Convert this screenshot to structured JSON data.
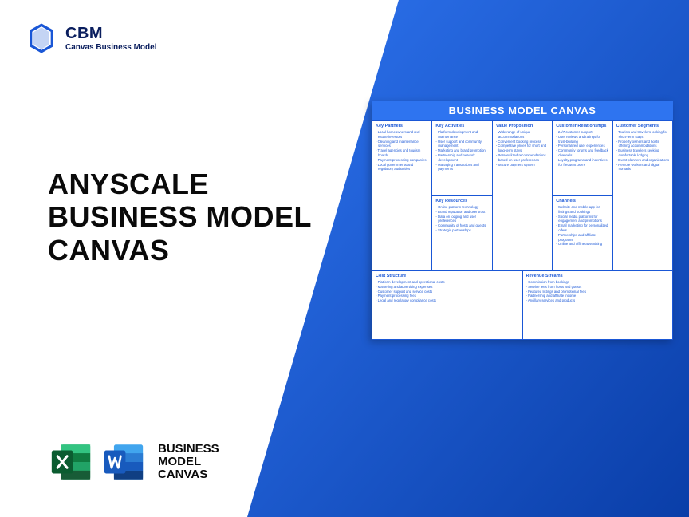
{
  "colors": {
    "brand_blue": "#1a57d6",
    "brand_blue_dark": "#0a3ea8",
    "heading_color": "#0a0a0a",
    "logo_text": "#0a1e5e",
    "canvas_title_bg": "#2e74f0",
    "canvas_border": "#1a57d6",
    "excel_green": "#107c41",
    "excel_green_dark": "#0b5c30",
    "word_blue": "#185abd",
    "word_blue_dark": "#103f83"
  },
  "logo": {
    "name": "CBM",
    "subtitle": "Canvas Business Model"
  },
  "headline": "ANYSCALE\nBUSINESS MODEL\nCANVAS",
  "bmc_label": "BUSINESS\nMODEL\nCANVAS",
  "canvas": {
    "title": "BUSINESS MODEL CANVAS",
    "key_partners": {
      "h": "Key Partners",
      "items": [
        "Local homeowners and real estate investors",
        "Cleaning and maintenance services",
        "Travel agencies and tourism boards",
        "Payment processing companies",
        "Local governments and regulatory authorities"
      ]
    },
    "key_activities": {
      "h": "Key Activities",
      "items": [
        "Platform development and maintenance",
        "User support and community management",
        "Marketing and brand promotion",
        "Partnership and network development",
        "Managing transactions and payments"
      ]
    },
    "key_resources": {
      "h": "Key Resources",
      "items": [
        "Online platform technology",
        "Brand reputation and user trust",
        "Data on lodging and user preferences",
        "Community of hosts and guests",
        "Strategic partnerships"
      ]
    },
    "value_prop": {
      "h": "Value Proposition",
      "items": [
        "Wide range of unique accommodations",
        "Convenient booking process",
        "Competitive prices for short and long-term stays",
        "Personalized recommendations based on user preferences",
        "Secure payment system"
      ]
    },
    "cust_rel": {
      "h": "Customer Relationships",
      "items": [
        "24/7 customer support",
        "User reviews and ratings for trust-building",
        "Personalized user experiences",
        "Community forums and feedback channels",
        "Loyalty programs and incentives for frequent users"
      ]
    },
    "channels": {
      "h": "Channels",
      "items": [
        "Website and mobile app for listings and bookings",
        "Social media platforms for engagement and promotions",
        "Email marketing for personalized offers",
        "Partnerships and affiliate programs",
        "Online and offline advertising"
      ]
    },
    "cust_seg": {
      "h": "Customer Segments",
      "items": [
        "Tourists and travelers looking for short-term stays",
        "Property owners and hosts offering accommodations",
        "Business travelers seeking comfortable lodging",
        "Event planners and organizations",
        "Remote workers and digital nomads"
      ]
    },
    "cost": {
      "h": "Cost Structure",
      "items": [
        "Platform development and operational costs",
        "Marketing and advertising expenses",
        "Customer support and service costs",
        "Payment processing fees",
        "Legal and regulatory compliance costs"
      ]
    },
    "revenue": {
      "h": "Revenue Streams",
      "items": [
        "Commission from bookings",
        "Service fees from hosts and guests",
        "Featured listings and promotional fees",
        "Partnership and affiliate income",
        "Ancillary services and products"
      ]
    }
  }
}
